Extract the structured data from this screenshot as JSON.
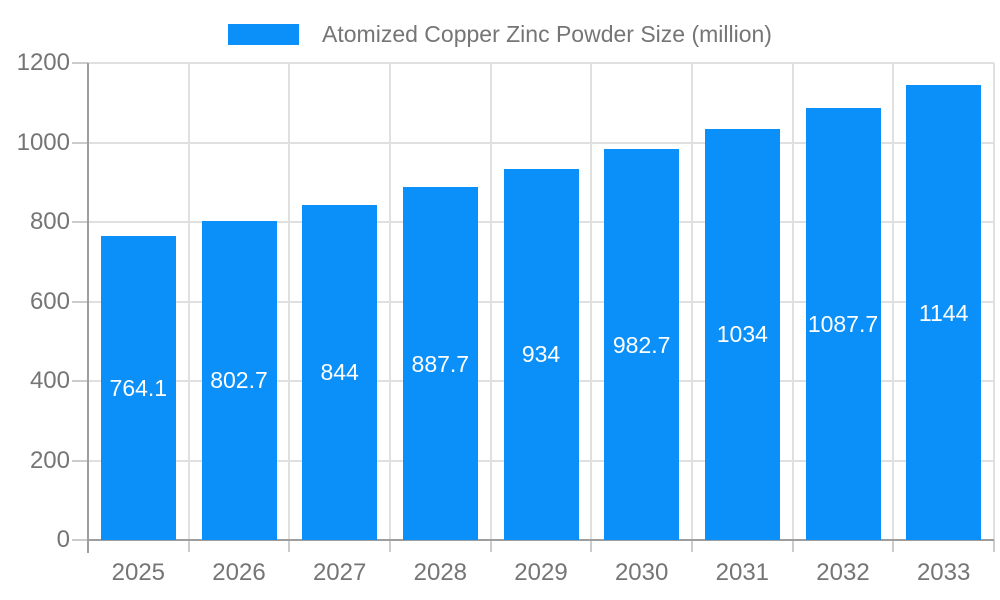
{
  "chart_data": {
    "type": "bar",
    "title": "Atomized Copper Zinc Powder Size (million)",
    "categories": [
      "2025",
      "2026",
      "2027",
      "2028",
      "2029",
      "2030",
      "2031",
      "2032",
      "2033"
    ],
    "series": [
      {
        "name": "Atomized Copper Zinc Powder Size (million)",
        "values": [
          764.1,
          802.7,
          844,
          887.7,
          934,
          982.7,
          1034,
          1087.7,
          1144
        ],
        "color": "#0a90f8"
      }
    ],
    "xlabel": "",
    "ylabel": "",
    "ylim": [
      0,
      1200
    ],
    "yticks": [
      0,
      200,
      400,
      600,
      800,
      1000,
      1200
    ],
    "grid": true,
    "legend_position": "top",
    "value_label_position": "inside-middle",
    "colors": {
      "bar": "#0a90f8",
      "tick_label": "#757575",
      "legend_text": "#757575",
      "gridline": "#e0e0e0",
      "axis_line": "#9e9e9e",
      "tick_mark": "#cccccc",
      "value_label": "#ffffff",
      "background": "#ffffff"
    }
  }
}
